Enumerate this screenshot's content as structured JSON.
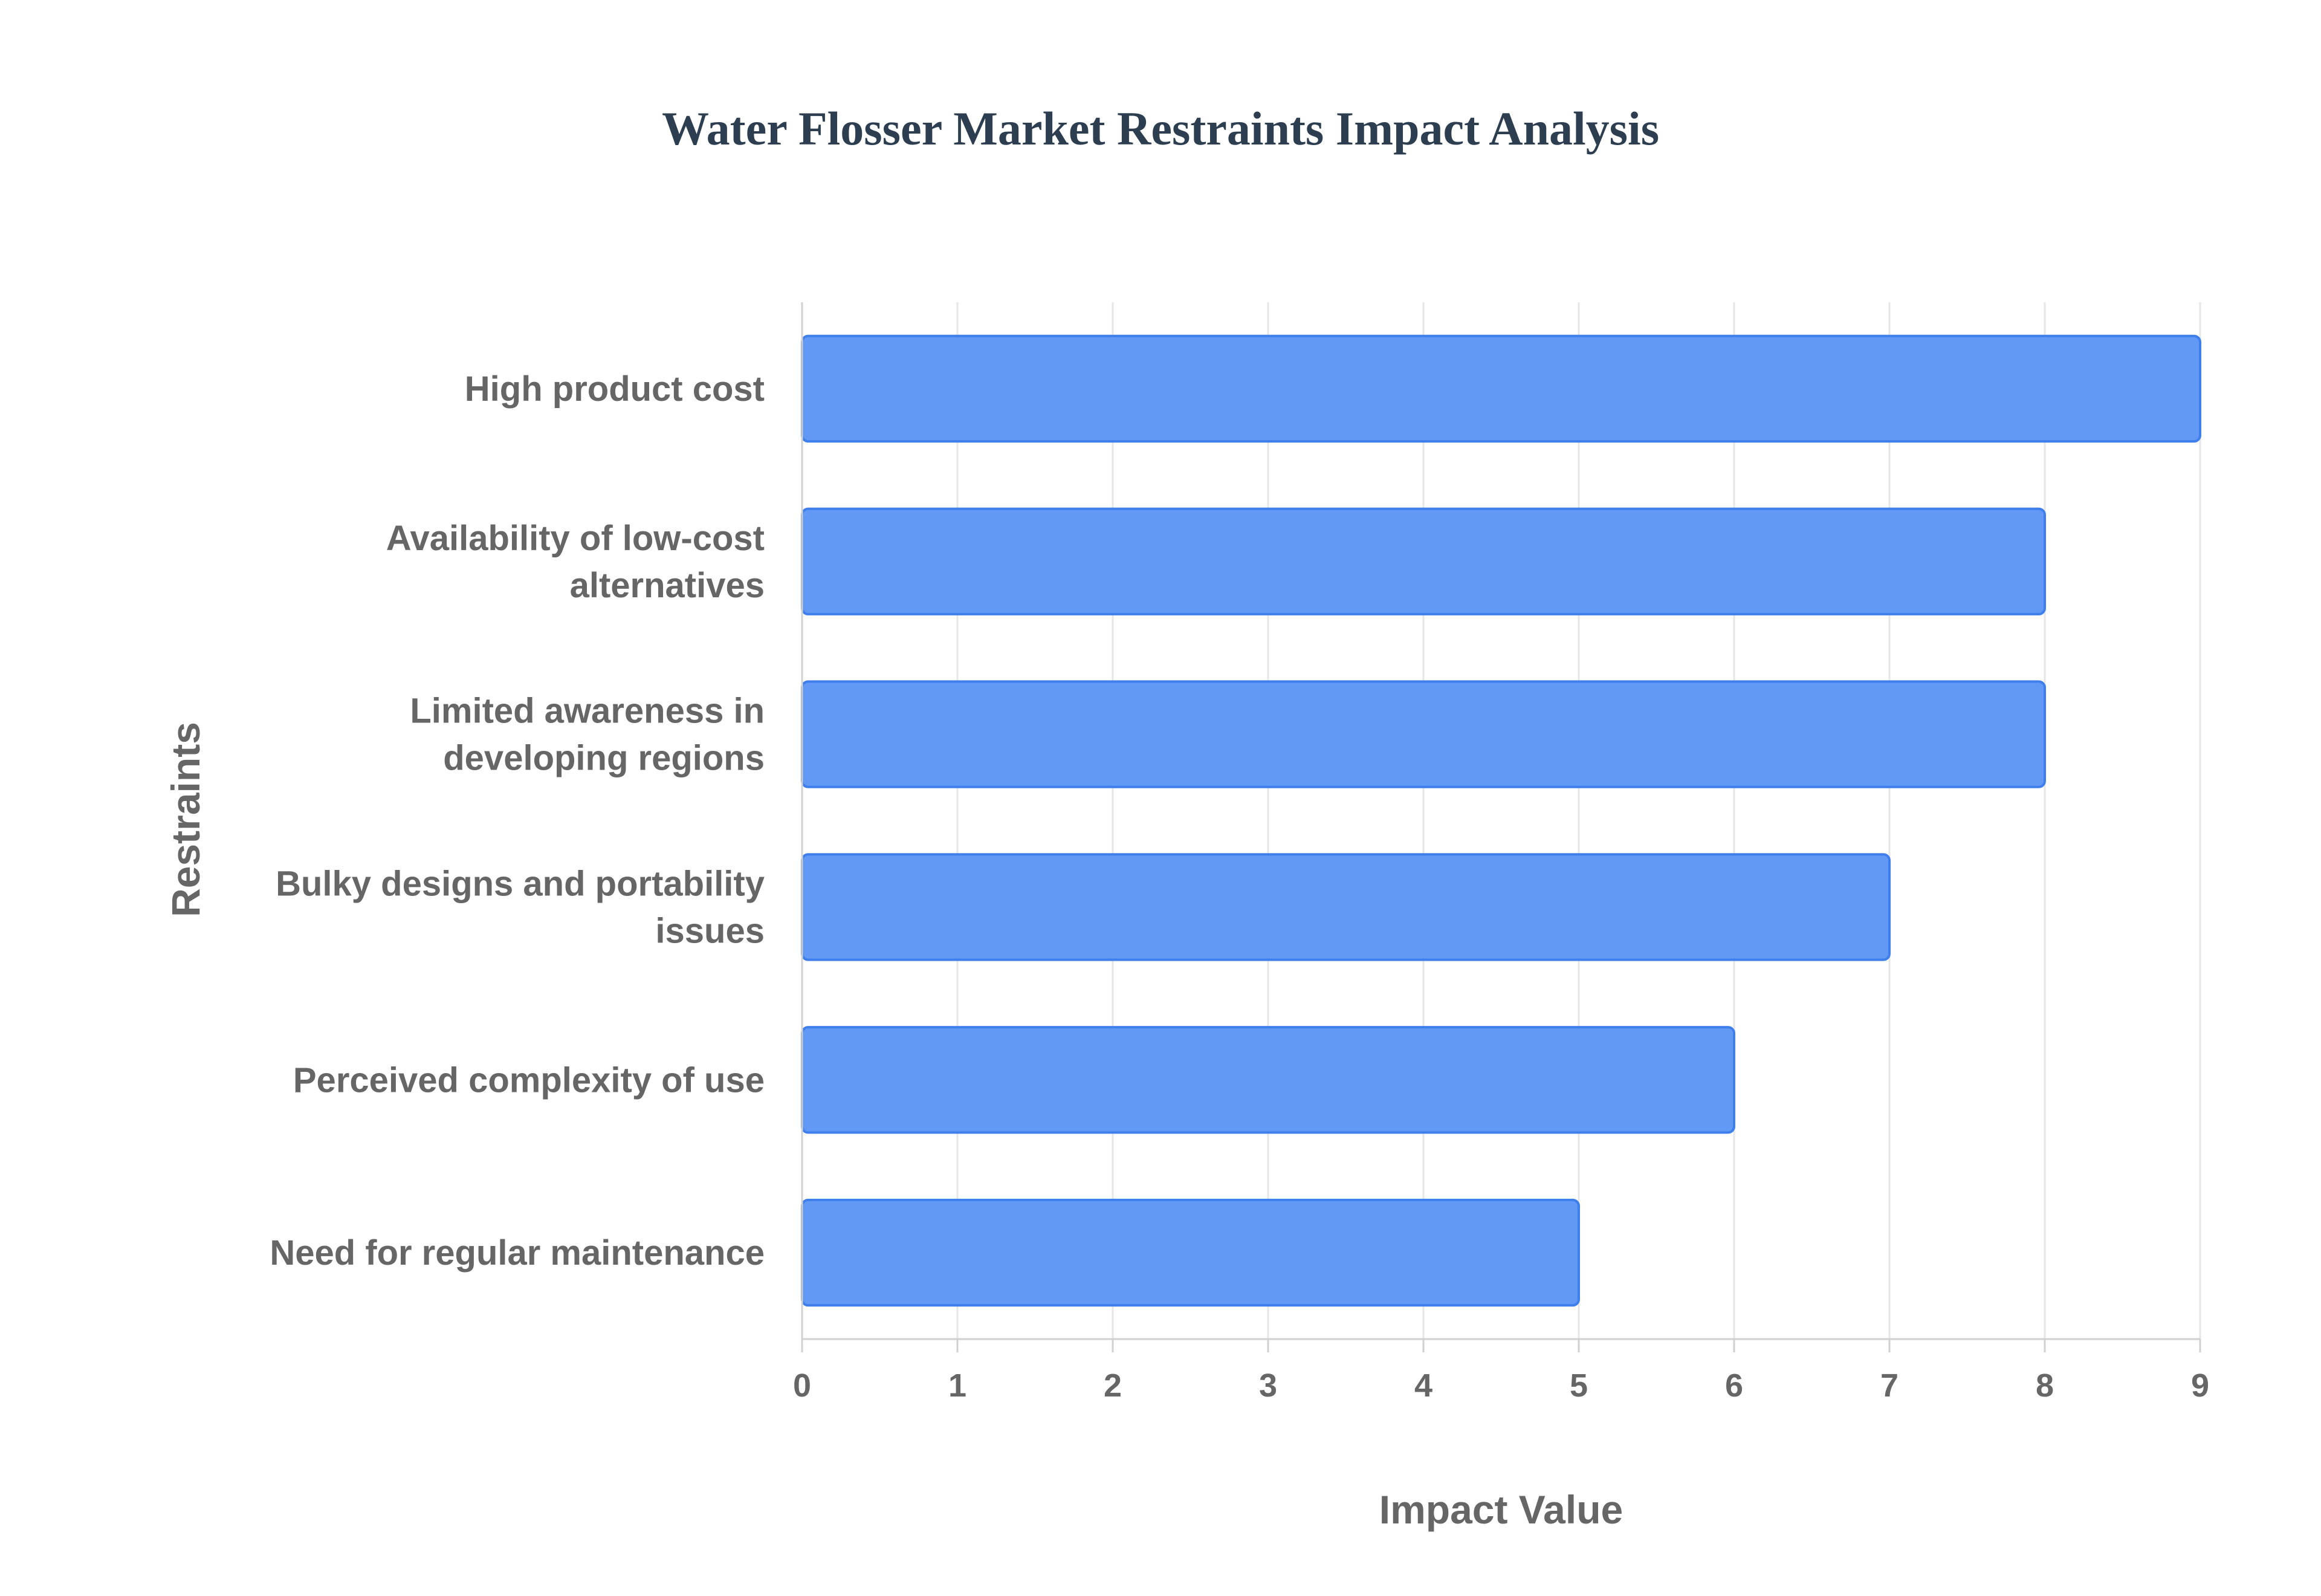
{
  "chart_data": {
    "type": "bar",
    "orientation": "horizontal",
    "title": "Water Flosser Market Restraints Impact Analysis",
    "xlabel": "Impact Value",
    "ylabel": "Restraints",
    "categories": [
      "High product cost",
      "Availability of low-cost alternatives",
      "Limited awareness in developing regions",
      "Bulky designs and portability issues",
      "Perceived complexity of use",
      "Need for regular maintenance"
    ],
    "category_lines": [
      [
        "High product cost"
      ],
      [
        "Availability of low-cost",
        "alternatives"
      ],
      [
        "Limited awareness in",
        "developing regions"
      ],
      [
        "Bulky designs and portability",
        "issues"
      ],
      [
        "Perceived complexity of use"
      ],
      [
        "Need for regular maintenance"
      ]
    ],
    "values": [
      9,
      8,
      8,
      7,
      6,
      5
    ],
    "xlim": [
      0,
      9
    ],
    "xticks": [
      0,
      1,
      2,
      3,
      4,
      5,
      6,
      7,
      8,
      9
    ],
    "grid": true,
    "legend": false,
    "colors": {
      "bar_fill": "#6199f5",
      "bar_stroke": "#3f7fec",
      "grid": "#e6e6e6",
      "axis": "#d0d0d0",
      "text": "#666666",
      "title": "#2c3e50"
    }
  }
}
